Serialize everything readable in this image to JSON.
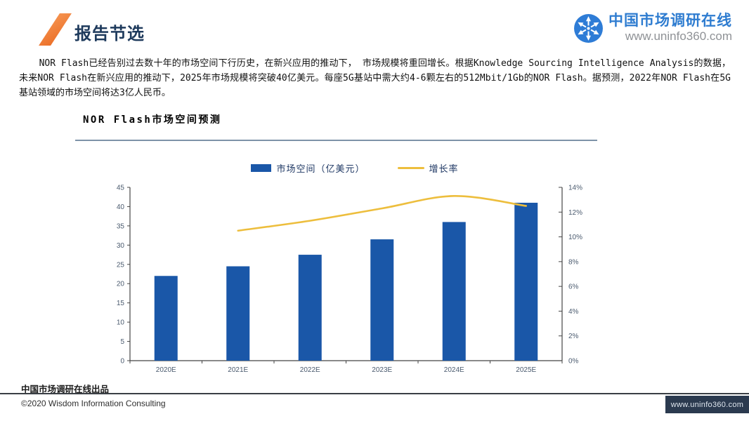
{
  "header": {
    "title": "报告节选",
    "brand_name": "中国市场调研在线",
    "brand_url": "www.uninfo360.com"
  },
  "intro": {
    "text": "NOR Flash已经告别过去数十年的市场空间下行历史，在新兴应用的推动下， 市场规模将重回增长。根据Knowledge Sourcing Intelligence Analysis的数据，未来NOR Flash在新兴应用的推动下，2025年市场规模将突破40亿美元。每座5G基站中需大约4-6颗左右的512Mbit/1Gb的NOR Flash。据预测，2022年NOR Flash在5G基站领域的市场空间将达3亿人民币。"
  },
  "chart_data": {
    "type": "bar",
    "title": "NOR Flash市场空间预测",
    "categories": [
      "2020E",
      "2021E",
      "2022E",
      "2023E",
      "2024E",
      "2025E"
    ],
    "series": [
      {
        "name": "市场空间（亿美元）",
        "type": "bar",
        "axis": "left",
        "values": [
          22,
          24.5,
          27.5,
          31.5,
          36,
          41
        ],
        "color": "#1a57a8"
      },
      {
        "name": "增长率",
        "type": "line",
        "axis": "right",
        "values": [
          null,
          10.5,
          11.3,
          12.3,
          13.3,
          12.5
        ],
        "color": "#edbe3d"
      }
    ],
    "left_axis": {
      "min": 0,
      "max": 45,
      "step": 5
    },
    "right_axis": {
      "min": 0,
      "max": 14,
      "step": 2,
      "suffix": "%"
    },
    "grid": false,
    "legend_position": "top-center"
  },
  "footer": {
    "produced_by": "中国市场调研在线出品",
    "copyright": "©2020 Wisdom Information Consulting",
    "badge_url": "www.uninfo360.com"
  },
  "colors": {
    "accent_orange": "#ec712a",
    "brand_blue": "#2e7cd0",
    "bar_blue": "#1a57a8",
    "line_gold": "#edbe3d",
    "badge_bg": "#2b3a4f",
    "separator": "#7e93a8"
  }
}
